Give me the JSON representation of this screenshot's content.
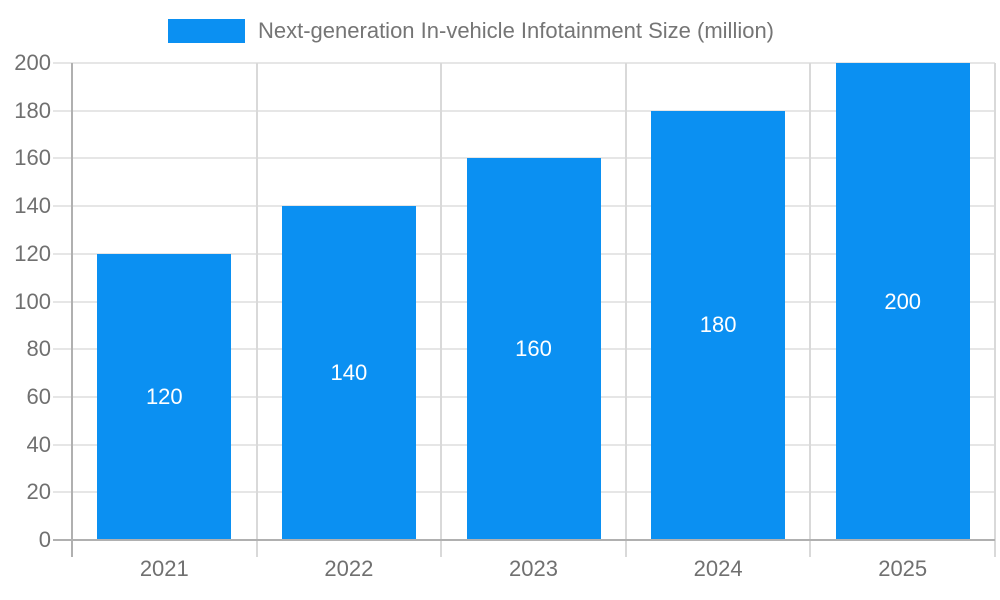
{
  "chart_data": {
    "type": "bar",
    "title": "Next-generation In-vehicle Infotainment Size (million)",
    "categories": [
      "2021",
      "2022",
      "2023",
      "2024",
      "2025"
    ],
    "series": [
      {
        "name": "Next-generation In-vehicle Infotainment Size (million)",
        "values": [
          120,
          140,
          160,
          180,
          200
        ]
      }
    ],
    "y_ticks": [
      0,
      20,
      40,
      60,
      80,
      100,
      120,
      140,
      160,
      180,
      200
    ],
    "ylim": [
      0,
      200
    ],
    "xlabel": "",
    "ylabel": "",
    "grid": true,
    "legend_position": "top-center",
    "value_labels_shown_inside_bars": true,
    "colors": {
      "bar": "#0b90f2",
      "value_label": "#ffffff",
      "tick_label": "#707070",
      "legend_text": "#757575",
      "axis_line": "#b0b0b0",
      "grid_h": "#e6e6e6",
      "grid_v": "#d9d9d9",
      "background": "#ffffff"
    }
  }
}
